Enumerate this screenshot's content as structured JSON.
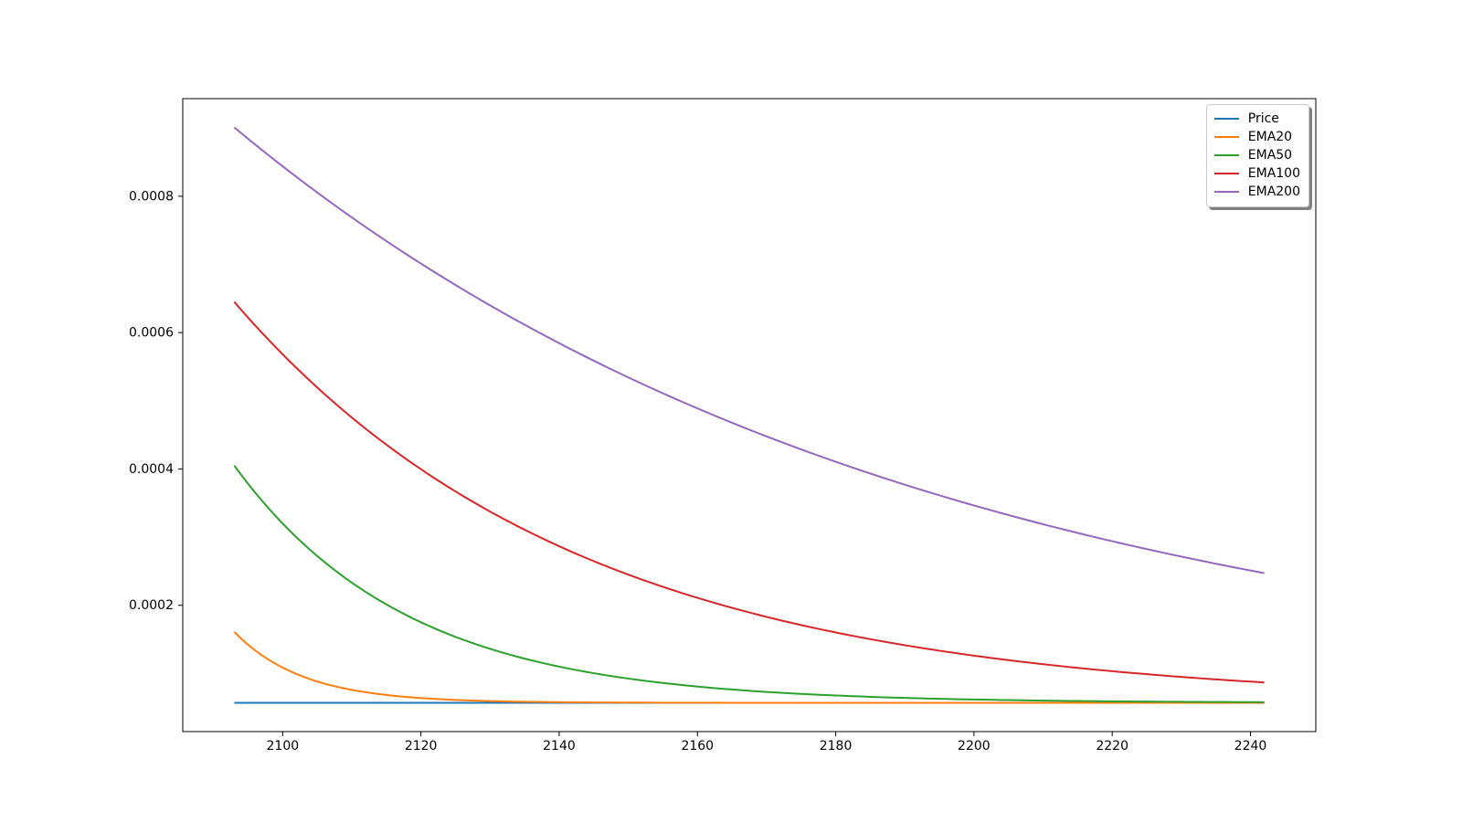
{
  "figure": {
    "background": "#ffffff",
    "axes_frame_color": "#000000"
  },
  "chart_data": {
    "type": "line",
    "title": "",
    "xlabel": "",
    "ylabel": "",
    "grid": false,
    "legend_position": "upper-right",
    "x_start": 2093,
    "x_end": 2242,
    "n_points": 150,
    "xlim": [
      2085.55,
      2249.45
    ],
    "ylim": [
      1.48e-05,
      0.0009432
    ],
    "x_ticks": [
      2100,
      2120,
      2140,
      2160,
      2180,
      2200,
      2220,
      2240
    ],
    "x_tick_labels": [
      "2100",
      "2120",
      "2140",
      "2160",
      "2180",
      "2200",
      "2220",
      "2240"
    ],
    "y_ticks": [
      0.0002,
      0.0004,
      0.0006,
      0.0008
    ],
    "y_tick_labels": [
      "0.0002",
      "0.0004",
      "0.0006",
      "0.0008"
    ],
    "price_level": 5.7e-05,
    "sample_x": [
      2093,
      2103,
      2113,
      2123,
      2133,
      2143,
      2153,
      2163,
      2173,
      2183,
      2193,
      2203,
      2213,
      2223,
      2233,
      2242
    ],
    "series": [
      {
        "name": "Price",
        "color": "#1f77b4",
        "model": "constant",
        "value": 5.7e-05,
        "sample_values": [
          5.7e-05,
          5.7e-05,
          5.7e-05,
          5.7e-05,
          5.7e-05,
          5.7e-05,
          5.7e-05,
          5.7e-05,
          5.7e-05,
          5.7e-05,
          5.7e-05,
          5.7e-05,
          5.7e-05,
          5.7e-05,
          5.7e-05,
          5.7e-05
        ]
      },
      {
        "name": "EMA20",
        "color": "#ff7f0e",
        "model": "exp_decay_to_price",
        "period": 20,
        "alpha": 0.0952381,
        "start": 0.000161,
        "sample_values": [
          0.000161,
          9.52e-05,
          7.11e-05,
          6.22e-05,
          5.89e-05,
          5.77e-05,
          5.73e-05,
          5.71e-05,
          5.7e-05,
          5.7e-05,
          5.7e-05,
          5.7e-05,
          5.7e-05,
          5.7e-05,
          5.7e-05,
          5.7e-05
        ]
      },
      {
        "name": "EMA50",
        "color": "#2ca02c",
        "model": "exp_decay_to_price",
        "period": 50,
        "alpha": 0.0392157,
        "start": 0.000405,
        "sample_values": [
          0.000405,
          0.00029,
          0.000213,
          0.000161,
          0.000127,
          0.000104,
          8.85e-05,
          7.81e-05,
          7.11e-05,
          6.65e-05,
          6.34e-05,
          6.13e-05,
          5.99e-05,
          5.89e-05,
          5.83e-05,
          5.79e-05
        ]
      },
      {
        "name": "EMA100",
        "color": "#d62728",
        "model": "exp_decay_to_price",
        "period": 100,
        "alpha": 0.019802,
        "start": 0.000645,
        "sample_values": [
          0.000645,
          0.000538,
          0.000451,
          0.00038,
          0.000321,
          0.000273,
          0.000234,
          0.000202,
          0.000176,
          0.000154,
          0.000137,
          0.000122,
          0.00011,
          0.000101,
          9.28e-05,
          8.68e-05
        ]
      },
      {
        "name": "EMA200",
        "color": "#9467bd",
        "model": "exp_decay_to_price",
        "period": 200,
        "alpha": 0.0099502,
        "start": 0.000901,
        "sample_values": [
          0.000901,
          0.000821,
          0.000748,
          0.000682,
          0.000623,
          0.000569,
          0.00052,
          0.000476,
          0.000436,
          0.0004,
          0.000368,
          0.000338,
          0.000311,
          0.000287,
          0.000265,
          0.000247
        ]
      }
    ]
  },
  "legend": {
    "entries": [
      "Price",
      "EMA20",
      "EMA50",
      "EMA100",
      "EMA200"
    ]
  }
}
